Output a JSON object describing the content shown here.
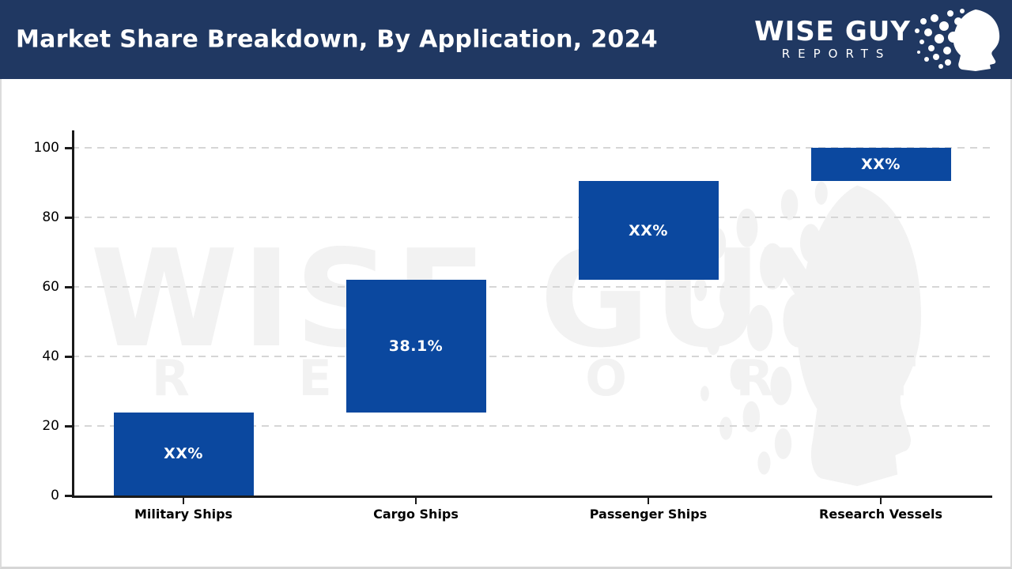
{
  "header": {
    "title": "Market Share Breakdown, By Application, 2024",
    "logo": {
      "line1": "WISE GUY",
      "line2": "REPORTS"
    }
  },
  "watermark": {
    "line1": "WISE GUY",
    "line2": "R E P O R T S"
  },
  "colors": {
    "header_bg": "#203862",
    "bar": "#0b489f",
    "grid": "#d6d6d6",
    "axis": "#1a1a1a",
    "watermark": "#f2f2f2",
    "title_text": "#ffffff",
    "bar_label_text": "#ffffff"
  },
  "chart_data": {
    "type": "bar",
    "subtype": "waterfall",
    "title": "Market Share Breakdown, By Application, 2024",
    "categories": [
      "Military Ships",
      "Cargo Ships",
      "Passenger Ships",
      "Research Vessels"
    ],
    "bars": [
      {
        "category": "Military Ships",
        "start": 0,
        "end": 23.9,
        "label": "XX%"
      },
      {
        "category": "Cargo Ships",
        "start": 23.9,
        "end": 62.0,
        "label": "38.1%"
      },
      {
        "category": "Passenger Ships",
        "start": 62.0,
        "end": 90.4,
        "label": "XX%"
      },
      {
        "category": "Research Vessels",
        "start": 90.4,
        "end": 100.0,
        "label": "XX%"
      }
    ],
    "yticks": [
      0,
      20,
      40,
      60,
      80,
      100
    ],
    "ylim": [
      0,
      105
    ],
    "xlabel": "",
    "ylabel": "",
    "grid": "horizontal-dashed",
    "legend": null
  }
}
